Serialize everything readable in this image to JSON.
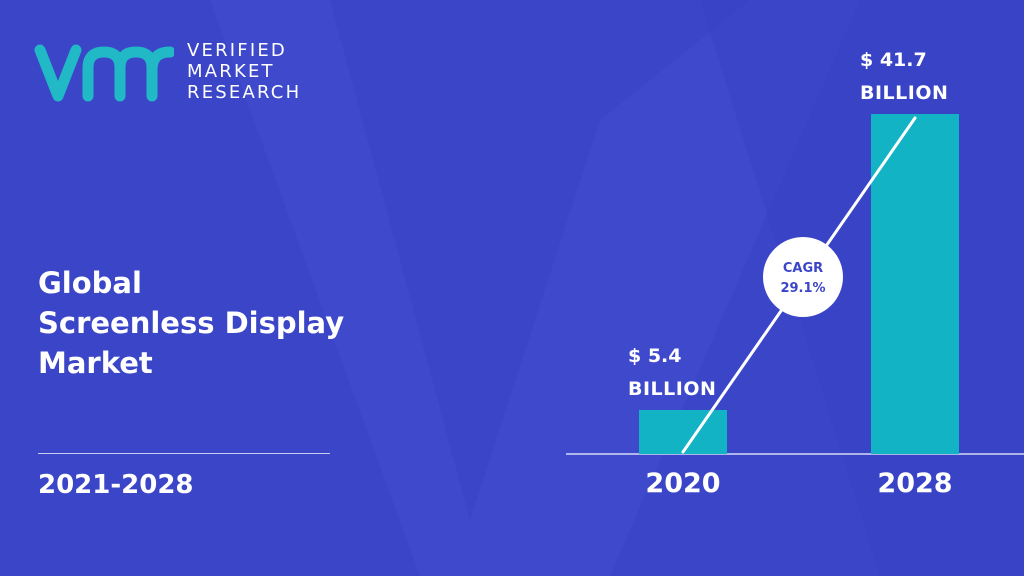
{
  "brand": {
    "line1": "VERIFIED",
    "line2": "MARKET",
    "line3": "RESEARCH"
  },
  "title": {
    "line1": "Global",
    "line2": "Screenless Display",
    "line3": "Market"
  },
  "years": "2021-2028",
  "colors": {
    "background": "#3b45c8",
    "bar": "#12b3c4",
    "text": "#ffffff",
    "badge_text": "#3b45c8",
    "logo": "#20b9c5"
  },
  "chart_data": {
    "type": "bar",
    "categories": [
      "2020",
      "2028"
    ],
    "values": [
      5.4,
      41.7
    ],
    "value_labels": [
      {
        "line1": "$ 5.4",
        "line2": "BILLION"
      },
      {
        "line1": "$ 41.7",
        "line2": "BILLION"
      }
    ],
    "cagr": {
      "label": "CAGR",
      "value": "29.1%"
    }
  }
}
